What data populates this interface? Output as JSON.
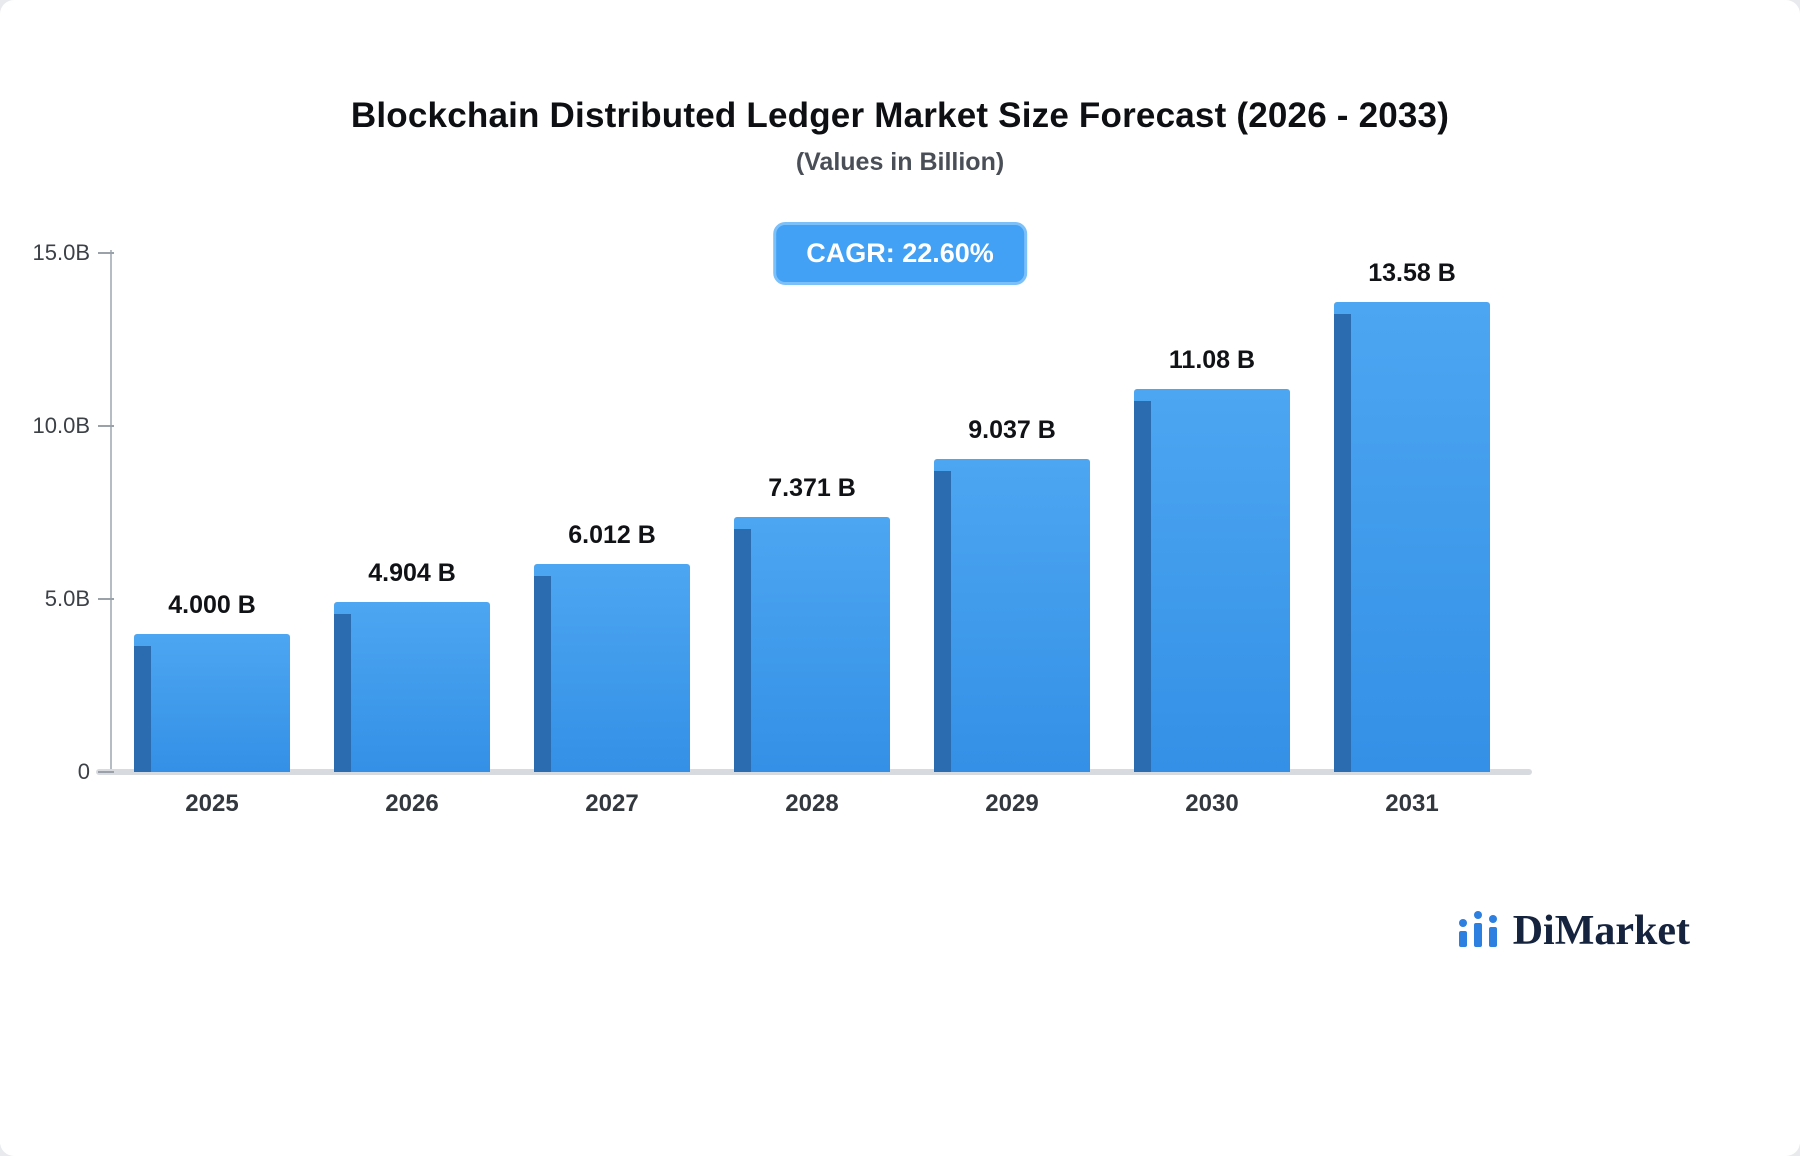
{
  "header": {
    "title": "Blockchain Distributed Ledger Market Size Forecast (2026 - 2033)",
    "subtitle": "(Values in Billion)"
  },
  "badge": {
    "label": "CAGR: 22.60%",
    "color": "#42a0f5"
  },
  "chart_data": {
    "type": "bar",
    "title": "Blockchain Distributed Ledger Market Size Forecast (2026 - 2033)",
    "subtitle": "(Values in Billion)",
    "categories": [
      "2025",
      "2026",
      "2027",
      "2028",
      "2029",
      "2030",
      "2031"
    ],
    "values": [
      4.0,
      4.904,
      6.012,
      7.371,
      9.037,
      11.08,
      13.58
    ],
    "value_labels": [
      "4.000 B",
      "4.904 B",
      "6.012 B",
      "7.371 B",
      "9.037 B",
      "11.08 B",
      "13.58 B"
    ],
    "xlabel": "",
    "ylabel": "",
    "ylim": [
      0,
      15
    ],
    "yticks": [
      {
        "value": 15,
        "label": "15.0B"
      },
      {
        "value": 10,
        "label": "10.0B"
      },
      {
        "value": 5,
        "label": "5.0B"
      },
      {
        "value": 0,
        "label": "0"
      }
    ],
    "grid": false,
    "legend": false,
    "bar_color": "#3b95e8",
    "bar_side_color": "#2b6cb0"
  },
  "logo": {
    "name": "DiMarket",
    "icon": "bar-chart-icon",
    "icon_color": "#2d7fe0",
    "text_color": "#16233f"
  }
}
